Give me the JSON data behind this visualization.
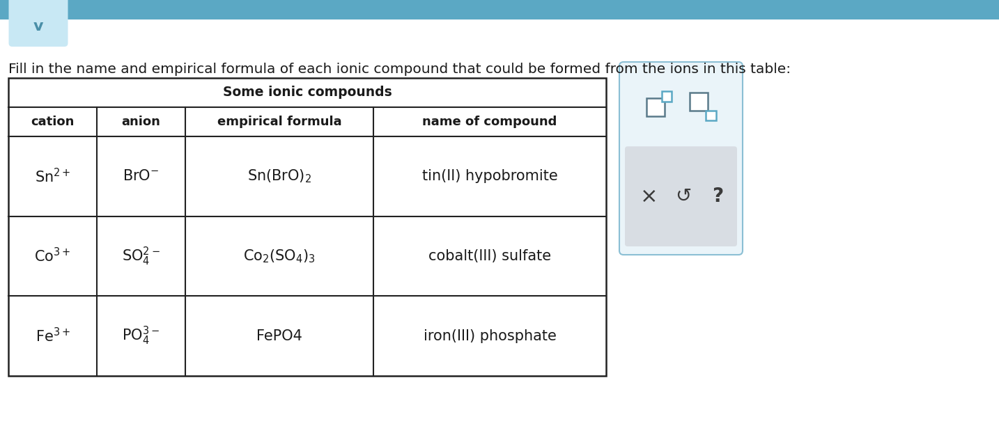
{
  "bg_color": "#ffffff",
  "title_text": "Fill in the name and empirical formula of each ionic compound that could be formed from the ions in this table:",
  "title_fontsize": 15,
  "table_title": "Some ionic compounds",
  "col_headers": [
    "cation",
    "anion",
    "empirical formula",
    "name of compound"
  ],
  "rows": [
    {
      "cation": "Sn$^{2+}$",
      "anion": "BrO$^{-}$",
      "formula": "Sn$\\left(\\mathrm{BrO}\\right)_{2}$",
      "name": "tin(II) hypobromite"
    },
    {
      "cation": "Co$^{3+}$",
      "anion": "SO$_{4}^{2-}$",
      "formula": "Co$_{2}\\left(\\mathrm{SO}_{4}\\right)_{3}$",
      "name": "cobalt(III) sulfate"
    },
    {
      "cation": "Fe$^{3+}$",
      "anion": "PO$_{4}^{3-}$",
      "formula": "FePO4",
      "name": "iron(III) phosphate"
    }
  ],
  "top_bar_color": "#5ba8c4",
  "top_bar_height": 0.045,
  "chevron_color": "#5ba8c4",
  "sidebar_border_color": "#8bbfd4",
  "sidebar_bg_color": "#eaf4f9",
  "gray_bar_color": "#d8dde3",
  "icon_teal": "#5ba8c4",
  "icon_gray": "#6a7f8e"
}
